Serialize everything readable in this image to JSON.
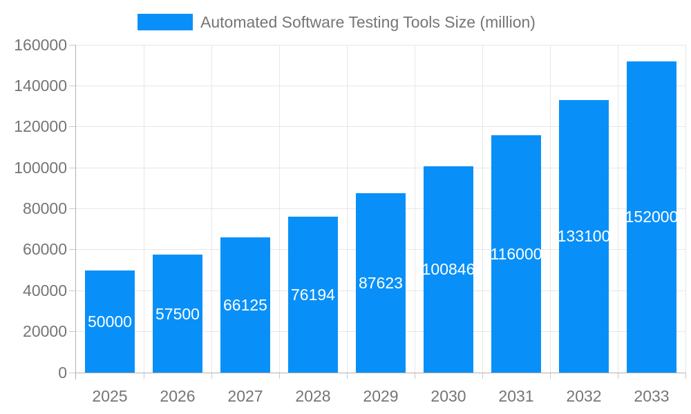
{
  "chart_data": {
    "type": "bar",
    "title": "Automated Software Testing Tools Size (million)",
    "categories": [
      "2025",
      "2026",
      "2027",
      "2028",
      "2029",
      "2030",
      "2031",
      "2032",
      "2033"
    ],
    "values": [
      50000,
      57500,
      66125,
      76194,
      87623,
      100846,
      116000,
      133100,
      152000
    ],
    "value_labels": [
      "50000",
      "57500",
      "66125",
      "76194",
      "87623",
      "100846",
      "116000",
      "133100",
      "152000"
    ],
    "ytick_labels": [
      "0",
      "20000",
      "40000",
      "60000",
      "80000",
      "100000",
      "120000",
      "140000",
      "160000"
    ],
    "yticks": [
      0,
      20000,
      40000,
      60000,
      80000,
      100000,
      120000,
      140000,
      160000
    ],
    "ylim": [
      0,
      160000
    ],
    "xlabel": "",
    "ylabel": "",
    "grid": true,
    "legend_position": "top",
    "colors": {
      "bar": "#0990f8",
      "bar_label_text": "#ffffff",
      "axis_text": "#757575",
      "grid_line": "#e6e6e6",
      "axis_line": "#b1b1b1",
      "tick_mark": "#c9c9c9",
      "background": "#ffffff"
    }
  }
}
